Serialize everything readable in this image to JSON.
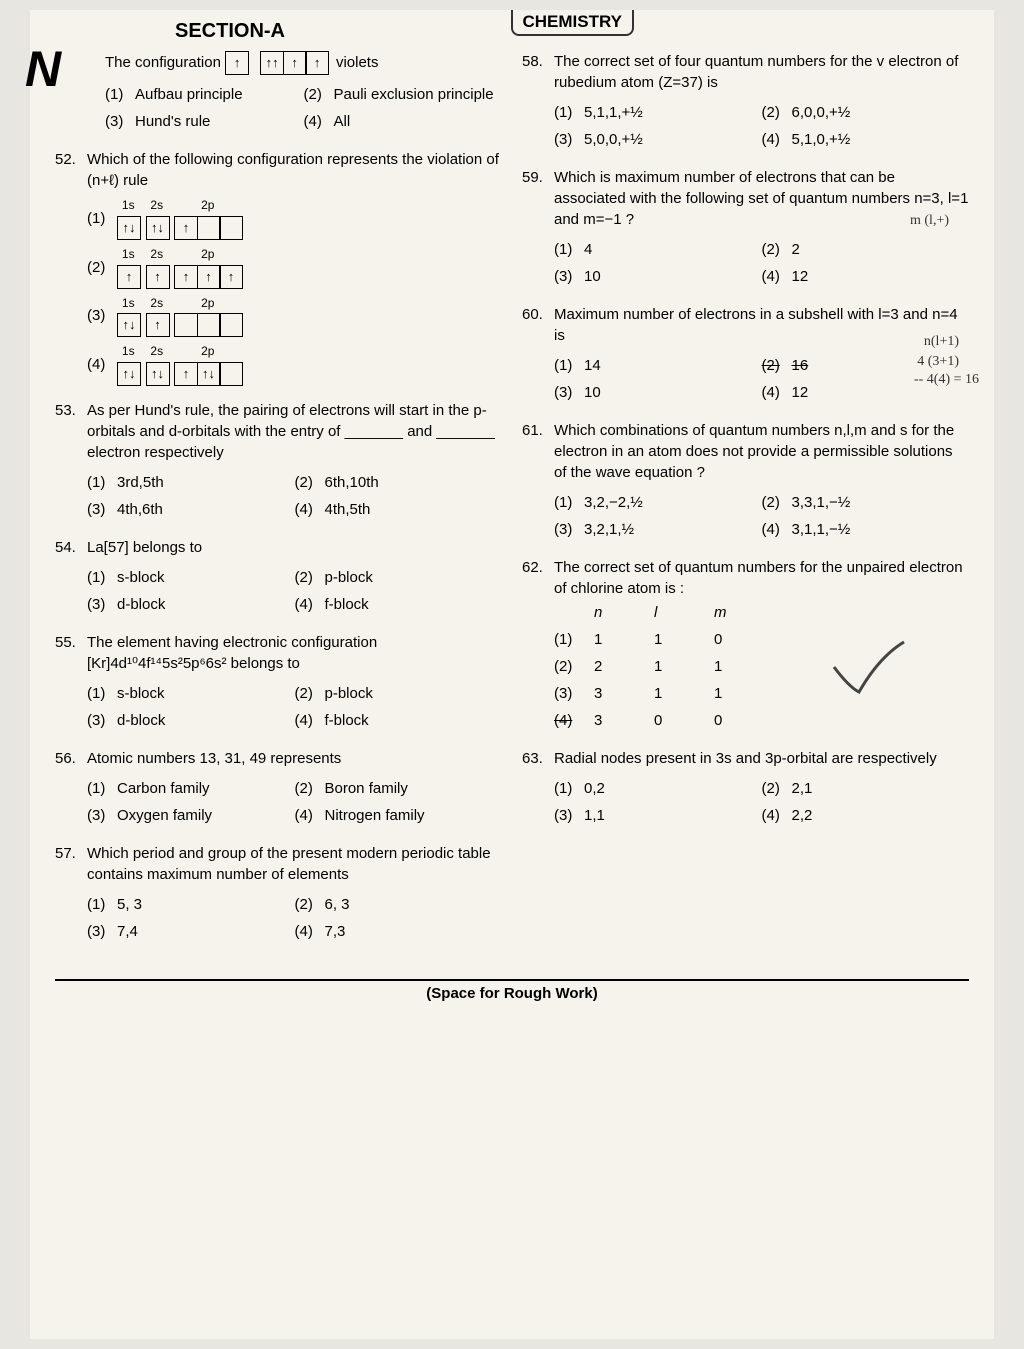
{
  "header_tag": "CHEMISTRY",
  "section_title": "SECTION-A",
  "n_logo": "N",
  "left": {
    "q51_intro": "The configuration",
    "q51_violets": "violets",
    "q51_opts": [
      "Aufbau principle",
      "Pauli exclusion principle",
      "Hund's rule",
      "All"
    ],
    "q52_num": "52.",
    "q52_text": "Which of the following configuration represents the violation of (n+ℓ) rule",
    "q53_num": "53.",
    "q53_text1": "As per Hund's rule, the pairing of electrons will start in the p-orbitals and d-orbitals with the entry of _______ and _______ electron respectively",
    "q53_opts": [
      "3rd,5th",
      "6th,10th",
      "4th,6th",
      "4th,5th"
    ],
    "q54_num": "54.",
    "q54_text": "La[57] belongs to",
    "q54_opts": [
      "s-block",
      "p-block",
      "d-block",
      "f-block"
    ],
    "q55_num": "55.",
    "q55_text": "The element having electronic configuration [Kr]4d¹⁰4f¹⁴5s²5p⁶6s² belongs to",
    "q55_opts": [
      "s-block",
      "p-block",
      "d-block",
      "f-block"
    ],
    "q56_num": "56.",
    "q56_text": "Atomic numbers 13, 31, 49 represents",
    "q56_opts": [
      "Carbon family",
      "Boron family",
      "Oxygen family",
      "Nitrogen family"
    ],
    "q57_num": "57.",
    "q57_text": "Which period and group of the present modern periodic table contains maximum number of elements",
    "q57_opts": [
      "5, 3",
      "6, 3",
      "7,4",
      "7,3"
    ]
  },
  "right": {
    "q58_num": "58.",
    "q58_text": "The correct set of four quantum numbers for the v electron of rubedium atom (Z=37) is",
    "q58_opts": [
      "5,1,1,+½",
      "6,0,0,+½",
      "5,0,0,+½",
      "5,1,0,+½"
    ],
    "q59_num": "59.",
    "q59_text": "Which is maximum number of electrons that can be associated with the following set of quantum numbers n=3, l=1 and m=−1 ?",
    "q59_opts": [
      "4",
      "2",
      "10",
      "12"
    ],
    "q59_hand": "m (l,+)",
    "q60_num": "60.",
    "q60_text": "Maximum number of electrons in a subshell with l=3 and n=4 is",
    "q60_opts": [
      "14",
      "16",
      "10",
      "12"
    ],
    "q60_hand1": "n(l+1)",
    "q60_hand2": "4 (3+1)",
    "q60_hand3": "-- 4(4) = 16",
    "q61_num": "61.",
    "q61_text": "Which combinations of quantum numbers n,l,m and s for the electron in an atom does not provide a permissible solutions of the wave equation ?",
    "q61_opts": [
      "3,2,−2,½",
      "3,3,1,−½",
      "3,2,1,½",
      "3,1,1,−½"
    ],
    "q62_num": "62.",
    "q62_text": "The correct set of quantum numbers for the unpaired electron of chlorine atom is :",
    "q62_hdr": [
      "n",
      "l",
      "m"
    ],
    "q62_rows": [
      [
        "1",
        "1",
        "0"
      ],
      [
        "2",
        "1",
        "1"
      ],
      [
        "3",
        "1",
        "1"
      ],
      [
        "3",
        "0",
        "0"
      ]
    ],
    "q63_num": "63.",
    "q63_text": "Radial nodes present in 3s and 3p-orbital are respectively",
    "q63_opts": [
      "0,2",
      "2,1",
      "1,1",
      "2,2"
    ]
  },
  "footer": "(Space for Rough Work)",
  "arrows": {
    "up": "↑",
    "down": "↓",
    "updown": "↑↓"
  },
  "opt_labels": [
    "(1)",
    "(2)",
    "(3)",
    "(4)"
  ],
  "orbital_labels": {
    "s1": "1s",
    "s2": "2s",
    "p2": "2p"
  },
  "q52_configs": [
    {
      "s1": "↑↓",
      "s2": "↑↓",
      "p": [
        "↑",
        "",
        ""
      ]
    },
    {
      "s1": "↑",
      "s2": "↑",
      "p": [
        "↑",
        "↑",
        "↑"
      ]
    },
    {
      "s1": "↑↓",
      "s2": "↑",
      "p": [
        "",
        "",
        ""
      ]
    },
    {
      "s1": "↑↓",
      "s2": "↑↓",
      "p": [
        "↑",
        "↑↓",
        ""
      ]
    }
  ],
  "q51_boxes": {
    "first": [
      "↑"
    ],
    "second": [
      "↑↑",
      "↑",
      "↑"
    ]
  }
}
